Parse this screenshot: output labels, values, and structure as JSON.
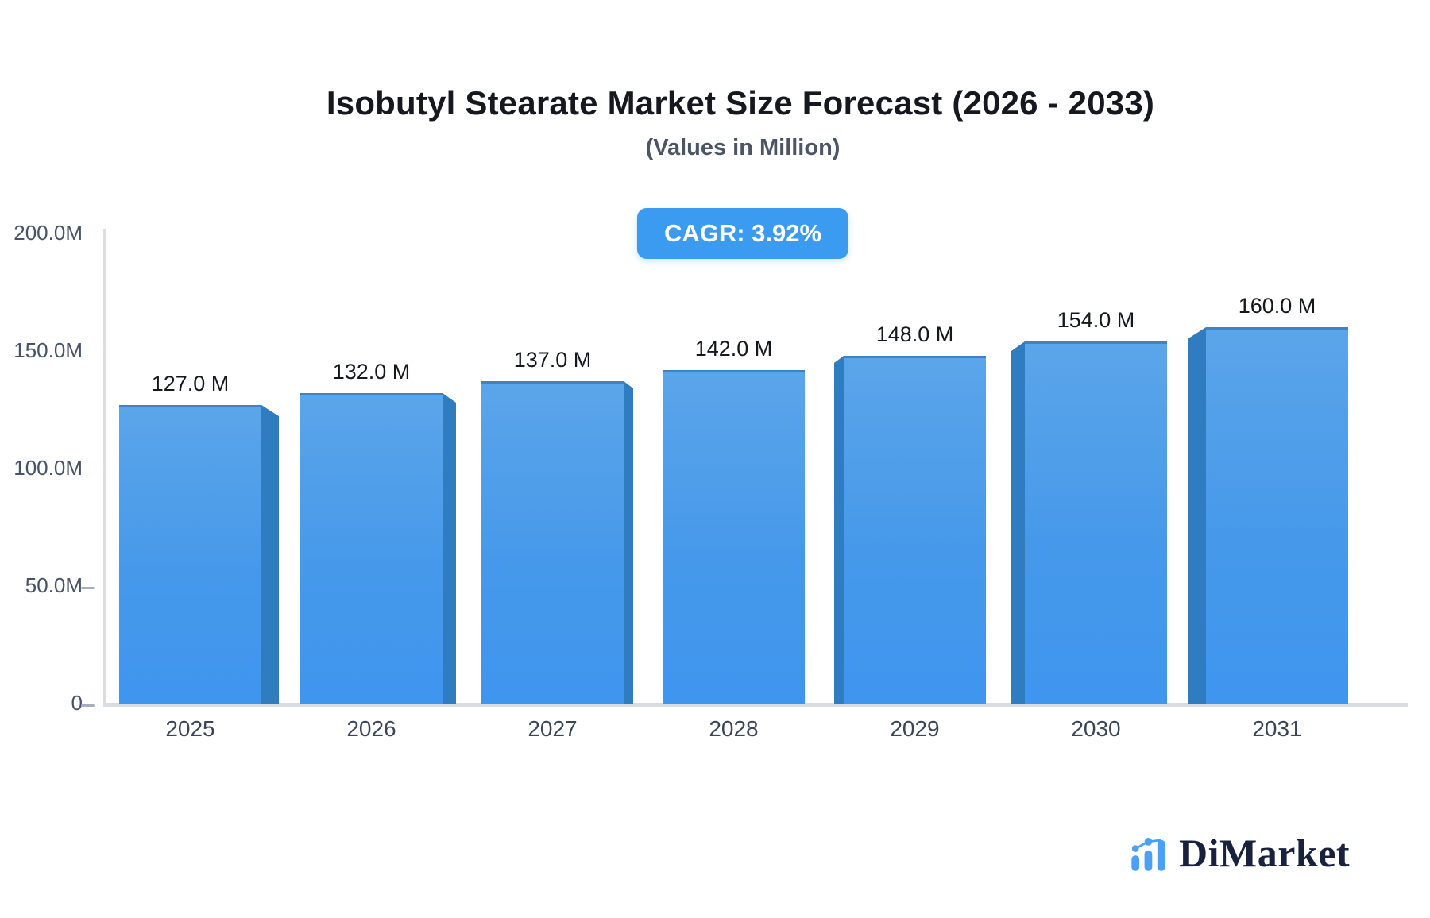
{
  "page": {
    "title": "Isobutyl Stearate Market Size Forecast (2026 - 2033)",
    "subtitle": "(Values in Million)",
    "cagr_badge": "CAGR: 3.92%"
  },
  "chart_data": {
    "type": "bar",
    "title": "Isobutyl Stearate Market Size Forecast (2026 - 2033)",
    "subtitle": "(Values in Million)",
    "annotation": "CAGR: 3.92%",
    "categories": [
      "2025",
      "2026",
      "2027",
      "2028",
      "2029",
      "2030",
      "2031"
    ],
    "values": [
      127,
      132,
      137,
      142,
      148,
      154,
      160
    ],
    "value_labels": [
      "127.0 M",
      "132.0 M",
      "137.0 M",
      "142.0 M",
      "148.0 M",
      "154.0 M",
      "160.0 M"
    ],
    "unit": "Million",
    "ylim": [
      0,
      200
    ],
    "grid": false,
    "legend": "none",
    "style": "3d-perspective-bars",
    "y_axis_ticks": [
      {
        "label": "200.0M",
        "value": 200,
        "dash": false
      },
      {
        "label": "150.0M",
        "value": 150,
        "dash": false
      },
      {
        "label": "100.0M",
        "value": 100,
        "dash": false
      },
      {
        "label": "50.0M",
        "value": 50,
        "dash": true
      },
      {
        "label": "0",
        "value": 0,
        "dash": true
      }
    ]
  },
  "colors": {
    "bar_front_top": "#5ba5ea",
    "bar_front_bottom": "#3f96ee",
    "bar_side": "#2f7cc0",
    "bar_top_edge": "#4083c5",
    "badge_bg": "#3b9bf1",
    "axis_line": "#d9dce1",
    "logo_blue": "#4aa0f4",
    "logo_text": "#18223d"
  },
  "footer": {
    "brand": "DiMarket"
  }
}
